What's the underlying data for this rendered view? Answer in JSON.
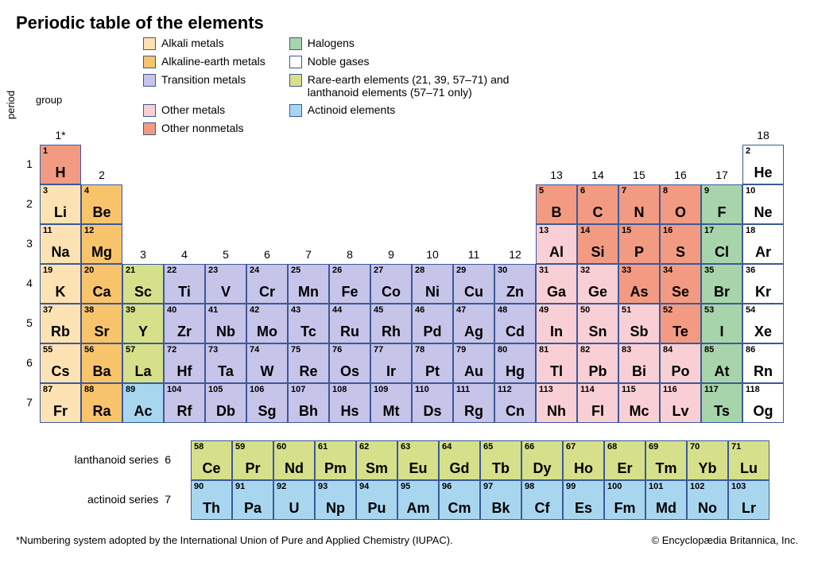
{
  "title": "Periodic table of the elements",
  "axis": {
    "period": "period",
    "group": "group",
    "group1": "1*"
  },
  "footer_left": "*Numbering system adopted by the International Union of Pure and Applied Chemistry (IUPAC).",
  "footer_right": "© Encyclopædia Britannica, Inc.",
  "colors": {
    "alkali": "#fde3b3",
    "alkaline": "#f8c46b",
    "transition": "#c6c4e8",
    "other_metal": "#f9cfd6",
    "other_nonmetal": "#f29b82",
    "halogen": "#a8d4ab",
    "noble": "#ffffff",
    "rare_earth": "#d6e08a",
    "actinoid": "#a9d6ef",
    "border": "#3b5998"
  },
  "cell": {
    "w": 52,
    "h": 50
  },
  "legend": [
    {
      "color": "alkali",
      "label": "Alkali metals"
    },
    {
      "color": "alkaline",
      "label": "Alkaline-earth metals"
    },
    {
      "color": "transition",
      "label": "Transition metals"
    },
    {
      "color": "other_metal",
      "label": "Other metals"
    },
    {
      "color": "other_nonmetal",
      "label": "Other nonmetals"
    },
    {
      "color": "halogen",
      "label": "Halogens"
    },
    {
      "color": "noble",
      "label": "Noble gases"
    },
    {
      "color": "rare_earth",
      "label": "Rare-earth elements (21, 39, 57–71) and lanthanoid elements (57–71 only)"
    },
    {
      "color": "actinoid",
      "label": "Actinoid elements"
    }
  ],
  "group_labels": [
    {
      "g": 1,
      "txt": "1*",
      "above_period": 1
    },
    {
      "g": 2,
      "txt": "2",
      "above_period": 2
    },
    {
      "g": 3,
      "txt": "3",
      "above_period": 4
    },
    {
      "g": 4,
      "txt": "4",
      "above_period": 4
    },
    {
      "g": 5,
      "txt": "5",
      "above_period": 4
    },
    {
      "g": 6,
      "txt": "6",
      "above_period": 4
    },
    {
      "g": 7,
      "txt": "7",
      "above_period": 4
    },
    {
      "g": 8,
      "txt": "8",
      "above_period": 4
    },
    {
      "g": 9,
      "txt": "9",
      "above_period": 4
    },
    {
      "g": 10,
      "txt": "10",
      "above_period": 4
    },
    {
      "g": 11,
      "txt": "11",
      "above_period": 4
    },
    {
      "g": 12,
      "txt": "12",
      "above_period": 4
    },
    {
      "g": 13,
      "txt": "13",
      "above_period": 2
    },
    {
      "g": 14,
      "txt": "14",
      "above_period": 2
    },
    {
      "g": 15,
      "txt": "15",
      "above_period": 2
    },
    {
      "g": 16,
      "txt": "16",
      "above_period": 2
    },
    {
      "g": 17,
      "txt": "17",
      "above_period": 2
    },
    {
      "g": 18,
      "txt": "18",
      "above_period": 1
    }
  ],
  "elements": [
    {
      "n": 1,
      "s": "H",
      "p": 1,
      "g": 1,
      "c": "other_nonmetal"
    },
    {
      "n": 2,
      "s": "He",
      "p": 1,
      "g": 18,
      "c": "noble"
    },
    {
      "n": 3,
      "s": "Li",
      "p": 2,
      "g": 1,
      "c": "alkali"
    },
    {
      "n": 4,
      "s": "Be",
      "p": 2,
      "g": 2,
      "c": "alkaline"
    },
    {
      "n": 5,
      "s": "B",
      "p": 2,
      "g": 13,
      "c": "other_nonmetal"
    },
    {
      "n": 6,
      "s": "C",
      "p": 2,
      "g": 14,
      "c": "other_nonmetal"
    },
    {
      "n": 7,
      "s": "N",
      "p": 2,
      "g": 15,
      "c": "other_nonmetal"
    },
    {
      "n": 8,
      "s": "O",
      "p": 2,
      "g": 16,
      "c": "other_nonmetal"
    },
    {
      "n": 9,
      "s": "F",
      "p": 2,
      "g": 17,
      "c": "halogen"
    },
    {
      "n": 10,
      "s": "Ne",
      "p": 2,
      "g": 18,
      "c": "noble"
    },
    {
      "n": 11,
      "s": "Na",
      "p": 3,
      "g": 1,
      "c": "alkali"
    },
    {
      "n": 12,
      "s": "Mg",
      "p": 3,
      "g": 2,
      "c": "alkaline"
    },
    {
      "n": 13,
      "s": "Al",
      "p": 3,
      "g": 13,
      "c": "other_metal"
    },
    {
      "n": 14,
      "s": "Si",
      "p": 3,
      "g": 14,
      "c": "other_nonmetal"
    },
    {
      "n": 15,
      "s": "P",
      "p": 3,
      "g": 15,
      "c": "other_nonmetal"
    },
    {
      "n": 16,
      "s": "S",
      "p": 3,
      "g": 16,
      "c": "other_nonmetal"
    },
    {
      "n": 17,
      "s": "Cl",
      "p": 3,
      "g": 17,
      "c": "halogen"
    },
    {
      "n": 18,
      "s": "Ar",
      "p": 3,
      "g": 18,
      "c": "noble"
    },
    {
      "n": 19,
      "s": "K",
      "p": 4,
      "g": 1,
      "c": "alkali"
    },
    {
      "n": 20,
      "s": "Ca",
      "p": 4,
      "g": 2,
      "c": "alkaline"
    },
    {
      "n": 21,
      "s": "Sc",
      "p": 4,
      "g": 3,
      "c": "rare_earth"
    },
    {
      "n": 22,
      "s": "Ti",
      "p": 4,
      "g": 4,
      "c": "transition"
    },
    {
      "n": 23,
      "s": "V",
      "p": 4,
      "g": 5,
      "c": "transition"
    },
    {
      "n": 24,
      "s": "Cr",
      "p": 4,
      "g": 6,
      "c": "transition"
    },
    {
      "n": 25,
      "s": "Mn",
      "p": 4,
      "g": 7,
      "c": "transition"
    },
    {
      "n": 26,
      "s": "Fe",
      "p": 4,
      "g": 8,
      "c": "transition"
    },
    {
      "n": 27,
      "s": "Co",
      "p": 4,
      "g": 9,
      "c": "transition"
    },
    {
      "n": 28,
      "s": "Ni",
      "p": 4,
      "g": 10,
      "c": "transition"
    },
    {
      "n": 29,
      "s": "Cu",
      "p": 4,
      "g": 11,
      "c": "transition"
    },
    {
      "n": 30,
      "s": "Zn",
      "p": 4,
      "g": 12,
      "c": "transition"
    },
    {
      "n": 31,
      "s": "Ga",
      "p": 4,
      "g": 13,
      "c": "other_metal"
    },
    {
      "n": 32,
      "s": "Ge",
      "p": 4,
      "g": 14,
      "c": "other_metal"
    },
    {
      "n": 33,
      "s": "As",
      "p": 4,
      "g": 15,
      "c": "other_nonmetal"
    },
    {
      "n": 34,
      "s": "Se",
      "p": 4,
      "g": 16,
      "c": "other_nonmetal"
    },
    {
      "n": 35,
      "s": "Br",
      "p": 4,
      "g": 17,
      "c": "halogen"
    },
    {
      "n": 36,
      "s": "Kr",
      "p": 4,
      "g": 18,
      "c": "noble"
    },
    {
      "n": 37,
      "s": "Rb",
      "p": 5,
      "g": 1,
      "c": "alkali"
    },
    {
      "n": 38,
      "s": "Sr",
      "p": 5,
      "g": 2,
      "c": "alkaline"
    },
    {
      "n": 39,
      "s": "Y",
      "p": 5,
      "g": 3,
      "c": "rare_earth"
    },
    {
      "n": 40,
      "s": "Zr",
      "p": 5,
      "g": 4,
      "c": "transition"
    },
    {
      "n": 41,
      "s": "Nb",
      "p": 5,
      "g": 5,
      "c": "transition"
    },
    {
      "n": 42,
      "s": "Mo",
      "p": 5,
      "g": 6,
      "c": "transition"
    },
    {
      "n": 43,
      "s": "Tc",
      "p": 5,
      "g": 7,
      "c": "transition"
    },
    {
      "n": 44,
      "s": "Ru",
      "p": 5,
      "g": 8,
      "c": "transition"
    },
    {
      "n": 45,
      "s": "Rh",
      "p": 5,
      "g": 9,
      "c": "transition"
    },
    {
      "n": 46,
      "s": "Pd",
      "p": 5,
      "g": 10,
      "c": "transition"
    },
    {
      "n": 47,
      "s": "Ag",
      "p": 5,
      "g": 11,
      "c": "transition"
    },
    {
      "n": 48,
      "s": "Cd",
      "p": 5,
      "g": 12,
      "c": "transition"
    },
    {
      "n": 49,
      "s": "In",
      "p": 5,
      "g": 13,
      "c": "other_metal"
    },
    {
      "n": 50,
      "s": "Sn",
      "p": 5,
      "g": 14,
      "c": "other_metal"
    },
    {
      "n": 51,
      "s": "Sb",
      "p": 5,
      "g": 15,
      "c": "other_metal"
    },
    {
      "n": 52,
      "s": "Te",
      "p": 5,
      "g": 16,
      "c": "other_nonmetal"
    },
    {
      "n": 53,
      "s": "I",
      "p": 5,
      "g": 17,
      "c": "halogen"
    },
    {
      "n": 54,
      "s": "Xe",
      "p": 5,
      "g": 18,
      "c": "noble"
    },
    {
      "n": 55,
      "s": "Cs",
      "p": 6,
      "g": 1,
      "c": "alkali"
    },
    {
      "n": 56,
      "s": "Ba",
      "p": 6,
      "g": 2,
      "c": "alkaline"
    },
    {
      "n": 57,
      "s": "La",
      "p": 6,
      "g": 3,
      "c": "rare_earth"
    },
    {
      "n": 72,
      "s": "Hf",
      "p": 6,
      "g": 4,
      "c": "transition"
    },
    {
      "n": 73,
      "s": "Ta",
      "p": 6,
      "g": 5,
      "c": "transition"
    },
    {
      "n": 74,
      "s": "W",
      "p": 6,
      "g": 6,
      "c": "transition"
    },
    {
      "n": 75,
      "s": "Re",
      "p": 6,
      "g": 7,
      "c": "transition"
    },
    {
      "n": 76,
      "s": "Os",
      "p": 6,
      "g": 8,
      "c": "transition"
    },
    {
      "n": 77,
      "s": "Ir",
      "p": 6,
      "g": 9,
      "c": "transition"
    },
    {
      "n": 78,
      "s": "Pt",
      "p": 6,
      "g": 10,
      "c": "transition"
    },
    {
      "n": 79,
      "s": "Au",
      "p": 6,
      "g": 11,
      "c": "transition"
    },
    {
      "n": 80,
      "s": "Hg",
      "p": 6,
      "g": 12,
      "c": "transition"
    },
    {
      "n": 81,
      "s": "Tl",
      "p": 6,
      "g": 13,
      "c": "other_metal"
    },
    {
      "n": 82,
      "s": "Pb",
      "p": 6,
      "g": 14,
      "c": "other_metal"
    },
    {
      "n": 83,
      "s": "Bi",
      "p": 6,
      "g": 15,
      "c": "other_metal"
    },
    {
      "n": 84,
      "s": "Po",
      "p": 6,
      "g": 16,
      "c": "other_metal"
    },
    {
      "n": 85,
      "s": "At",
      "p": 6,
      "g": 17,
      "c": "halogen"
    },
    {
      "n": 86,
      "s": "Rn",
      "p": 6,
      "g": 18,
      "c": "noble"
    },
    {
      "n": 87,
      "s": "Fr",
      "p": 7,
      "g": 1,
      "c": "alkali"
    },
    {
      "n": 88,
      "s": "Ra",
      "p": 7,
      "g": 2,
      "c": "alkaline"
    },
    {
      "n": 89,
      "s": "Ac",
      "p": 7,
      "g": 3,
      "c": "actinoid"
    },
    {
      "n": 104,
      "s": "Rf",
      "p": 7,
      "g": 4,
      "c": "transition"
    },
    {
      "n": 105,
      "s": "Db",
      "p": 7,
      "g": 5,
      "c": "transition"
    },
    {
      "n": 106,
      "s": "Sg",
      "p": 7,
      "g": 6,
      "c": "transition"
    },
    {
      "n": 107,
      "s": "Bh",
      "p": 7,
      "g": 7,
      "c": "transition"
    },
    {
      "n": 108,
      "s": "Hs",
      "p": 7,
      "g": 8,
      "c": "transition"
    },
    {
      "n": 109,
      "s": "Mt",
      "p": 7,
      "g": 9,
      "c": "transition"
    },
    {
      "n": 110,
      "s": "Ds",
      "p": 7,
      "g": 10,
      "c": "transition"
    },
    {
      "n": 111,
      "s": "Rg",
      "p": 7,
      "g": 11,
      "c": "transition"
    },
    {
      "n": 112,
      "s": "Cn",
      "p": 7,
      "g": 12,
      "c": "transition"
    },
    {
      "n": 113,
      "s": "Nh",
      "p": 7,
      "g": 13,
      "c": "other_metal"
    },
    {
      "n": 114,
      "s": "Fl",
      "p": 7,
      "g": 14,
      "c": "other_metal"
    },
    {
      "n": 115,
      "s": "Mc",
      "p": 7,
      "g": 15,
      "c": "other_metal"
    },
    {
      "n": 116,
      "s": "Lv",
      "p": 7,
      "g": 16,
      "c": "other_metal"
    },
    {
      "n": 117,
      "s": "Ts",
      "p": 7,
      "g": 17,
      "c": "halogen"
    },
    {
      "n": 118,
      "s": "Og",
      "p": 7,
      "g": 18,
      "c": "noble"
    }
  ],
  "lanthanoids": {
    "label": "lanthanoid series",
    "period": "6",
    "items": [
      {
        "n": 58,
        "s": "Ce"
      },
      {
        "n": 59,
        "s": "Pr"
      },
      {
        "n": 60,
        "s": "Nd"
      },
      {
        "n": 61,
        "s": "Pm"
      },
      {
        "n": 62,
        "s": "Sm"
      },
      {
        "n": 63,
        "s": "Eu"
      },
      {
        "n": 64,
        "s": "Gd"
      },
      {
        "n": 65,
        "s": "Tb"
      },
      {
        "n": 66,
        "s": "Dy"
      },
      {
        "n": 67,
        "s": "Ho"
      },
      {
        "n": 68,
        "s": "Er"
      },
      {
        "n": 69,
        "s": "Tm"
      },
      {
        "n": 70,
        "s": "Yb"
      },
      {
        "n": 71,
        "s": "Lu"
      }
    ],
    "color": "rare_earth"
  },
  "actinoids": {
    "label": "actinoid series",
    "period": "7",
    "items": [
      {
        "n": 90,
        "s": "Th"
      },
      {
        "n": 91,
        "s": "Pa"
      },
      {
        "n": 92,
        "s": "U"
      },
      {
        "n": 93,
        "s": "Np"
      },
      {
        "n": 94,
        "s": "Pu"
      },
      {
        "n": 95,
        "s": "Am"
      },
      {
        "n": 96,
        "s": "Cm"
      },
      {
        "n": 97,
        "s": "Bk"
      },
      {
        "n": 98,
        "s": "Cf"
      },
      {
        "n": 99,
        "s": "Es"
      },
      {
        "n": 100,
        "s": "Fm"
      },
      {
        "n": 101,
        "s": "Md"
      },
      {
        "n": 102,
        "s": "No"
      },
      {
        "n": 103,
        "s": "Lr"
      }
    ],
    "color": "actinoid"
  }
}
